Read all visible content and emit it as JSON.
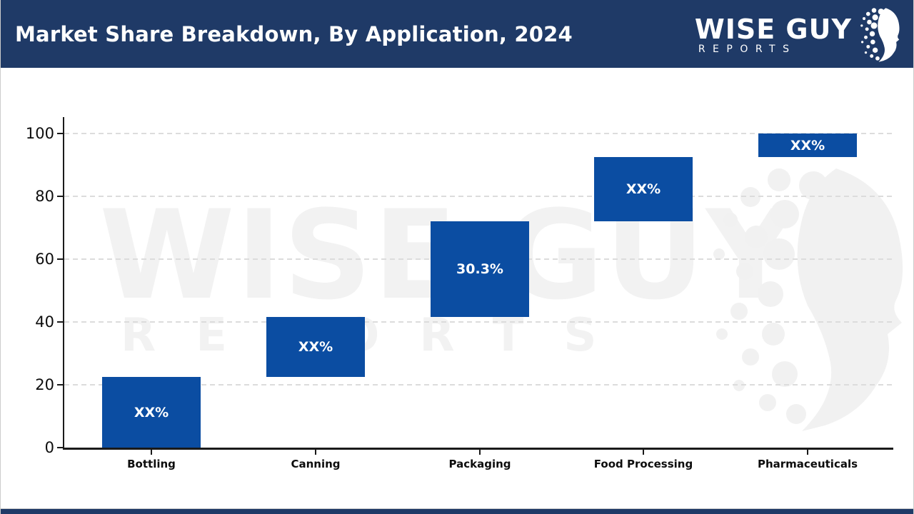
{
  "header": {
    "title": "Market Share Breakdown, By Application, 2024",
    "logo": {
      "line1": "WISE GUY",
      "line2": "REPORTS"
    }
  },
  "watermark": {
    "line1": "WISE GUY",
    "line2": "REPORTS"
  },
  "chart_data": {
    "type": "bar",
    "subtype": "waterfall",
    "title": "Market Share Breakdown, By Application, 2024",
    "categories": [
      "Bottling",
      "Canning",
      "Packaging",
      "Food Processing",
      "Pharmaceuticals"
    ],
    "bars": [
      {
        "category": "Bottling",
        "start": 0,
        "end": 22.5,
        "label": "XX%"
      },
      {
        "category": "Canning",
        "start": 22.5,
        "end": 41.7,
        "label": "XX%"
      },
      {
        "category": "Packaging",
        "start": 41.7,
        "end": 72.0,
        "label": "30.3%"
      },
      {
        "category": "Food Processing",
        "start": 72.0,
        "end": 92.5,
        "label": "XX%"
      },
      {
        "category": "Pharmaceuticals",
        "start": 92.5,
        "end": 100.0,
        "label": "XX%"
      }
    ],
    "yticks": [
      0,
      20,
      40,
      60,
      80,
      100
    ],
    "ylim": [
      0,
      105
    ],
    "xlabel": "",
    "ylabel": "",
    "grid": "horizontal-dashed",
    "legend": "none",
    "bar_color": "#0b4da2",
    "bar_label_color": "#ffffff",
    "axis_color": "#1a1a1a",
    "grid_color": "#dcdcdc"
  },
  "colors": {
    "header_bg": "#1f3a67",
    "footer_bg": "#1f3a67",
    "watermark": "#f2f2f2",
    "canvas": "#ffffff"
  }
}
